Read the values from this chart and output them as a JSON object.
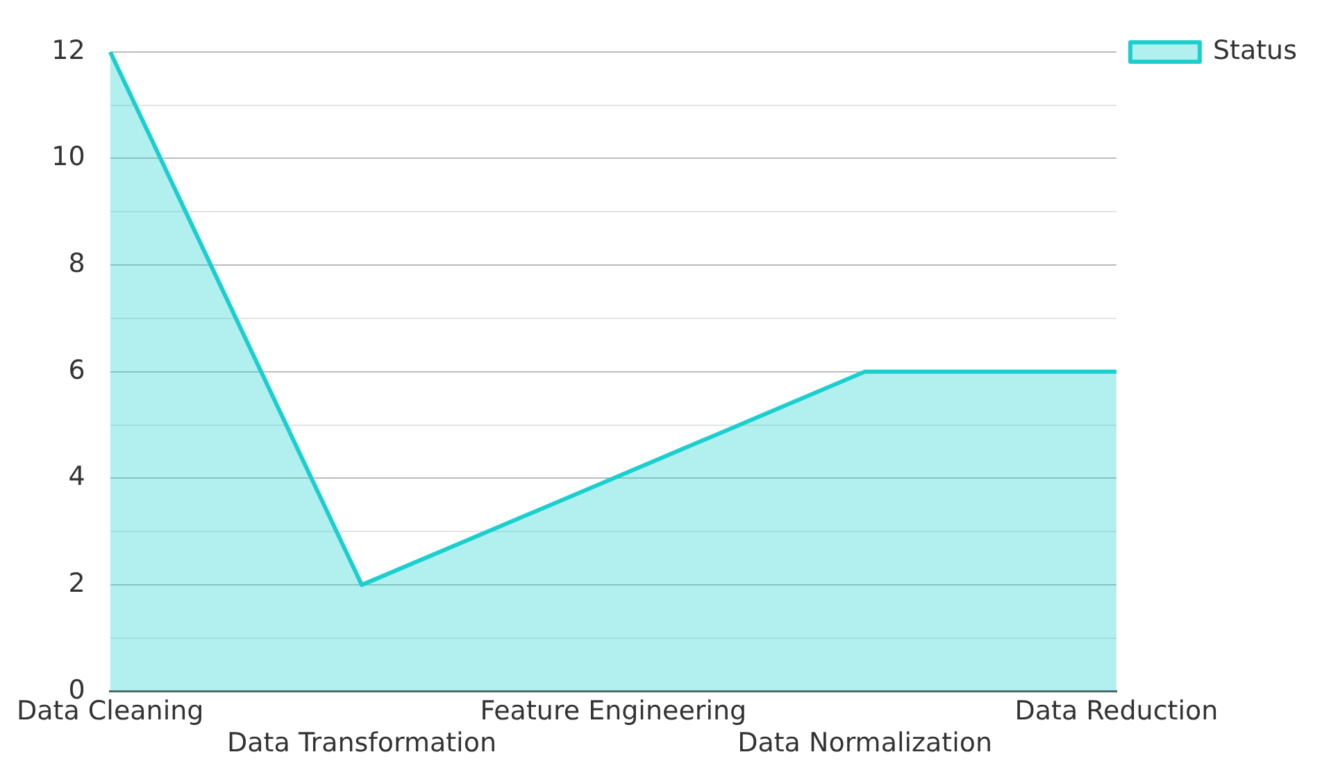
{
  "chart_data": {
    "type": "area",
    "categories": [
      "Data Cleaning",
      "Data Transformation",
      "Feature Engineering",
      "Data Normalization",
      "Data Reduction"
    ],
    "series": [
      {
        "name": "Status",
        "color": "#1ccfcf",
        "values": [
          12,
          2,
          4,
          6,
          6
        ]
      }
    ],
    "ylim": [
      0,
      12
    ],
    "yticks": [
      0,
      {
        "value": 1,
        "label": null
      },
      2,
      {
        "value": 3,
        "label": null
      },
      4,
      {
        "value": 5,
        "label": null
      },
      6,
      {
        "value": 7,
        "label": null
      },
      8,
      {
        "value": 9,
        "label": null
      },
      10,
      {
        "value": 11,
        "label": null
      },
      12
    ],
    "grid": "y",
    "legend": "top right"
  }
}
